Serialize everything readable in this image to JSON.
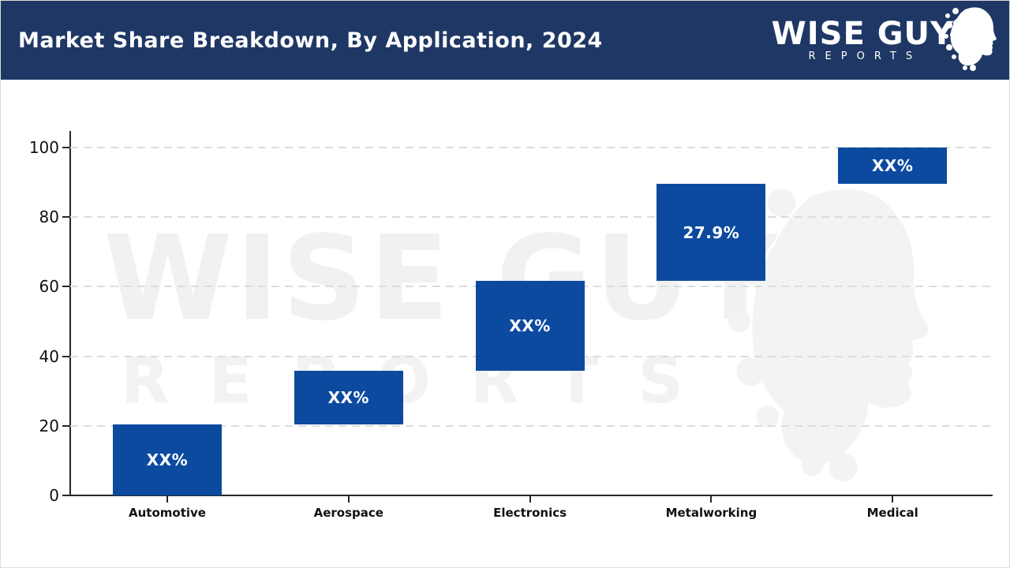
{
  "header": {
    "title": "Market Share Breakdown, By Application, 2024",
    "logo": {
      "line1": "WISE GUY",
      "line2": "REPORTS"
    }
  },
  "watermark": {
    "line1": "WISE GUY",
    "line2": "REPORTS"
  },
  "colors": {
    "header_bg": "#1f3764",
    "bar": "#0c4aa0",
    "watermark_gray": "#f2f2f3",
    "gridline": "#dcdcdc",
    "axis": "#262626"
  },
  "chart_data": {
    "type": "bar",
    "subtype": "waterfall",
    "title": "Market Share Breakdown, By Application, 2024",
    "categories": [
      "Automotive",
      "Aerospace",
      "Electronics",
      "Metalworking",
      "Medical"
    ],
    "segments": [
      {
        "category": "Automotive",
        "start": 0,
        "end": 20.4,
        "label": "XX%"
      },
      {
        "category": "Aerospace",
        "start": 20.4,
        "end": 35.9,
        "label": "XX%"
      },
      {
        "category": "Electronics",
        "start": 35.9,
        "end": 61.6,
        "label": "XX%"
      },
      {
        "category": "Metalworking",
        "start": 61.6,
        "end": 89.5,
        "label": "27.9%"
      },
      {
        "category": "Medical",
        "start": 89.5,
        "end": 100,
        "label": "XX%"
      }
    ],
    "yticks": [
      0,
      20,
      40,
      60,
      80,
      100
    ],
    "ylim": [
      0,
      105
    ],
    "xlabel": "",
    "ylabel": "",
    "grid": "horizontal-dashed",
    "legend": "none",
    "bar_color": "#0c4aa0",
    "value_label_color": "#ffffff"
  }
}
